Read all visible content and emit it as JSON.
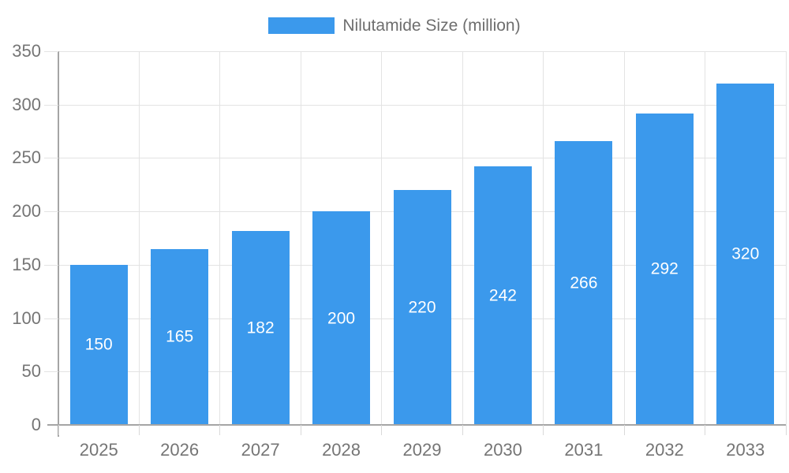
{
  "legend": {
    "label": "Nilutamide Size (million)"
  },
  "chart_data": {
    "type": "bar",
    "title": "",
    "xlabel": "",
    "ylabel": "",
    "categories": [
      "2025",
      "2026",
      "2027",
      "2028",
      "2029",
      "2030",
      "2031",
      "2032",
      "2033"
    ],
    "series": [
      {
        "name": "Nilutamide Size (million)",
        "values": [
          150,
          165,
          182,
          200,
          220,
          242,
          266,
          292,
          320
        ]
      }
    ],
    "ylim": [
      0,
      350
    ],
    "yticks": [
      0,
      50,
      100,
      150,
      200,
      250,
      300,
      350
    ],
    "grid": true,
    "legend_position": "top",
    "data_labels": "inside-center",
    "colors": {
      "bar": "#3b99ec",
      "data_label": "#ffffff",
      "axis_label": "#757575",
      "legend_text": "#6e6e6e",
      "gridline": "#e3e3e3",
      "axis_line": "#a5a5a5",
      "background": "#ffffff"
    }
  }
}
